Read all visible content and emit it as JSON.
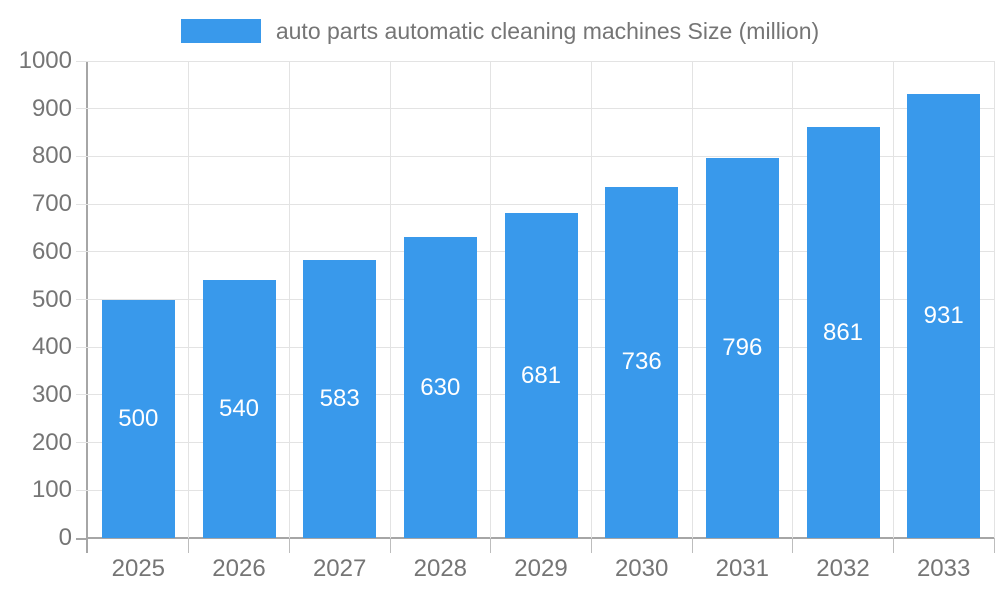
{
  "chart_data": {
    "type": "bar",
    "title": "auto parts automatic cleaning machines Size (million)",
    "categories": [
      "2025",
      "2026",
      "2027",
      "2028",
      "2029",
      "2030",
      "2031",
      "2032",
      "2033"
    ],
    "series": [
      {
        "name": "auto parts automatic cleaning machines Size (million)",
        "values": [
          500,
          540,
          583,
          630,
          681,
          736,
          796,
          861,
          931
        ]
      }
    ],
    "xlabel": "",
    "ylabel": "",
    "ylim": [
      0,
      1000
    ],
    "ytick_step": 100,
    "yticks": [
      0,
      100,
      200,
      300,
      400,
      500,
      600,
      700,
      800,
      900,
      1000
    ],
    "grid": true,
    "legend_position": "top",
    "value_labels": "inside-center"
  },
  "colors": {
    "bar": "#3999eb",
    "grid": "#e3e3e3",
    "axis_line": "#a6a6a6",
    "tick_label": "#757575",
    "legend_text": "#757575",
    "bar_label": "#ffffff",
    "x_tick": "#bdbdbd",
    "background": "#ffffff"
  }
}
